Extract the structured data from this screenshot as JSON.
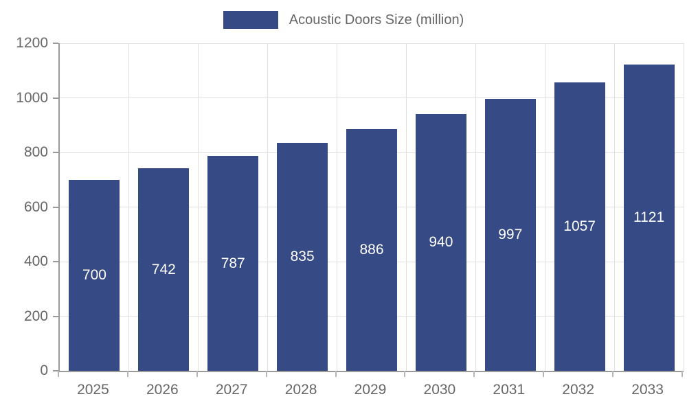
{
  "chart_data": {
    "type": "bar",
    "title": "",
    "legend": "Acoustic Doors Size (million)",
    "legend_position": "top-center",
    "categories": [
      "2025",
      "2026",
      "2027",
      "2028",
      "2029",
      "2030",
      "2031",
      "2032",
      "2033"
    ],
    "values": [
      700,
      742,
      787,
      835,
      886,
      940,
      997,
      1057,
      1121
    ],
    "xlabel": "",
    "ylabel": "",
    "ylim": [
      0,
      1200
    ],
    "yticks": [
      0,
      200,
      400,
      600,
      800,
      1000,
      1200
    ],
    "grid": true,
    "colors": {
      "bar": "#364a85",
      "value_label": "#ffffff",
      "axis_text": "#666666",
      "gridline": "#e0e0e0",
      "axis_line": "#9a9a9a",
      "background": "#ffffff"
    }
  }
}
